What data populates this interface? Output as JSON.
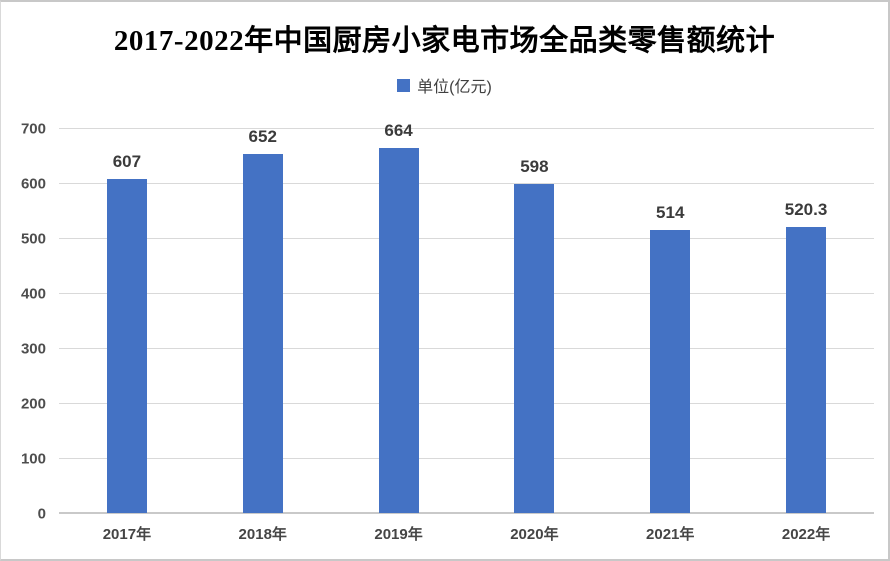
{
  "chart": {
    "title": "2017-2022年中国厨房小家电市场全品类零售额统计",
    "legend_label": "单位(亿元)"
  },
  "colors": {
    "bar": "#4472C4",
    "gridline": "#d9d9d9",
    "axis_line": "#c9c9c9"
  },
  "chart_data": {
    "type": "bar",
    "title": "2017-2022年中国厨房小家电市场全品类零售额统计",
    "categories": [
      "2017年",
      "2018年",
      "2019年",
      "2020年",
      "2021年",
      "2022年"
    ],
    "values": [
      607,
      652,
      664,
      598,
      514,
      520.3
    ],
    "data_labels": [
      "607",
      "652",
      "664",
      "598",
      "514",
      "520.3"
    ],
    "series_name": "单位(亿元)",
    "legend_position": "top",
    "grid": true,
    "xlabel": "",
    "ylabel": "",
    "ylim": [
      0,
      700
    ],
    "ytick_step": 100,
    "yticks": [
      0,
      100,
      200,
      300,
      400,
      500,
      600,
      700
    ],
    "bar_color": "#4472C4"
  }
}
